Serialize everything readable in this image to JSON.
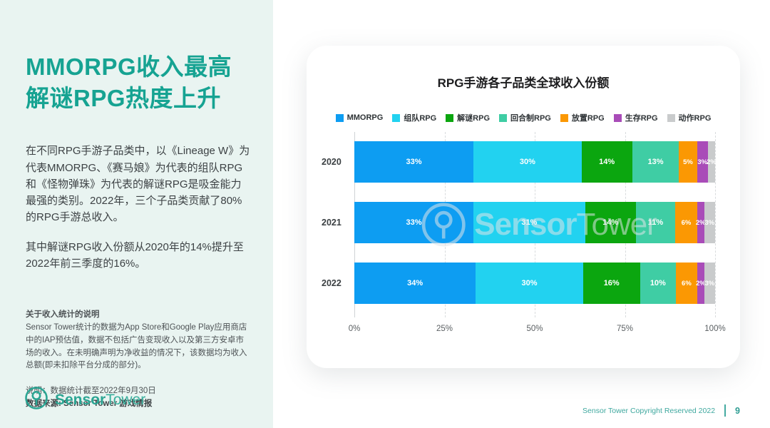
{
  "sidebar": {
    "title_line1": "MMORPG收入最高",
    "title_line2": "解谜RPG热度上升",
    "paragraph1": "在不同RPG手游子品类中，以《Lineage W》为代表MMORPG、《赛马娘》为代表的组队RPG和《怪物弹珠》为代表的解谜RPG是吸金能力最强的类别。2022年，三个子品类贡献了80%的RPG手游总收入。",
    "paragraph2": "其中解谜RPG收入份额从2020年的14%提升至2022年前三季度的16%。",
    "notes_heading": "关于收入统计的说明",
    "notes_body": "Sensor Tower统计的数据为App Store和Google Play应用商店中的IAP预估值，数据不包括广告变现收入以及第三方安卓市场的收入。在未明确声明为净收益的情况下，该数据均为收入总额(即未扣除平台分成的部分)。",
    "note_date": "说明：数据统计截至2022年9月30日",
    "note_source": "数据来源: Sensor Tower 游戏情报",
    "logo_bold": "Sensor",
    "logo_light": "Tower",
    "brand_color": "#2ba593"
  },
  "footer": {
    "copyright": "Sensor Tower Copyright Reserved 2022",
    "page_number": "9"
  },
  "chart_data": {
    "type": "bar",
    "orientation": "horizontal",
    "stacked": true,
    "title": "RPG手游各子品类全球收入份额",
    "categories": [
      "2020",
      "2021",
      "2022"
    ],
    "series": [
      {
        "name": "MMORPG",
        "color": "#0d9df2",
        "values": [
          33,
          33,
          34
        ]
      },
      {
        "name": "组队RPG",
        "color": "#22d2f0",
        "values": [
          30,
          31,
          30
        ]
      },
      {
        "name": "解谜RPG",
        "color": "#0ba60f",
        "values": [
          14,
          14,
          16
        ]
      },
      {
        "name": "回合制RPG",
        "color": "#3fcda4",
        "values": [
          13,
          11,
          10
        ]
      },
      {
        "name": "放置RPG",
        "color": "#fb9803",
        "values": [
          5,
          6,
          6
        ]
      },
      {
        "name": "生存RPG",
        "color": "#a94cb8",
        "values": [
          3,
          2,
          2
        ]
      },
      {
        "name": "动作RPG",
        "color": "#c9cbcc",
        "values": [
          2,
          3,
          3
        ]
      }
    ],
    "value_suffix": "%",
    "x_ticks": [
      "0%",
      "25%",
      "50%",
      "75%",
      "100%"
    ],
    "xlim": [
      0,
      100
    ],
    "legend_position": "top",
    "grid": "dashed-vertical",
    "watermark_bold": "Sensor",
    "watermark_light": "Tower"
  }
}
